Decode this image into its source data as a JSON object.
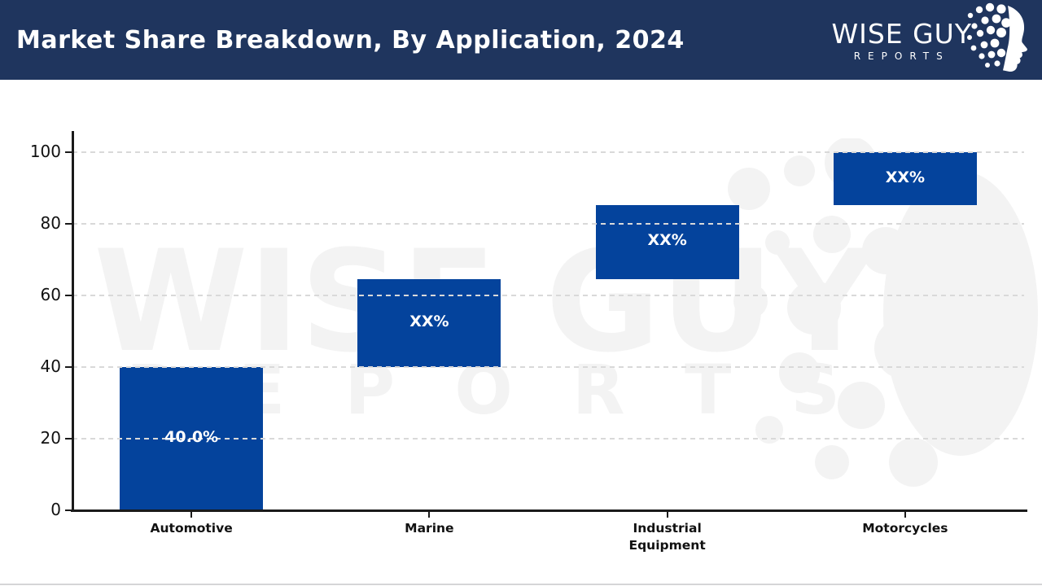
{
  "header": {
    "title": "Market Share Breakdown, By Application, 2024",
    "logo": {
      "primary": "WISE GUY",
      "secondary": "REPORTS"
    }
  },
  "watermark": {
    "primary": "WISE GUY",
    "secondary": "R E P O R T S"
  },
  "colors": {
    "header_bg": "#1f355e",
    "bar": "#04439c",
    "grid": "#d9d9d9",
    "axis": "#1a1a1a",
    "watermark": "#f3f3f3"
  },
  "chart_data": {
    "type": "bar",
    "subtype": "waterfall",
    "title": "Market Share Breakdown, By Application, 2024",
    "categories": [
      "Automotive",
      "Marine",
      "Industrial Equipment",
      "Motorcycles"
    ],
    "category_lines": [
      [
        "Automotive"
      ],
      [
        "Marine"
      ],
      [
        "Industrial",
        "Equipment"
      ],
      [
        "Motorcycles"
      ]
    ],
    "series": [
      {
        "name": "Market share (%)",
        "segments": [
          {
            "category": "Automotive",
            "start": 0,
            "end": 40,
            "label": "40.0%"
          },
          {
            "category": "Marine",
            "start": 40,
            "end": 64.6,
            "label": "XX%"
          },
          {
            "category": "Industrial Equipment",
            "start": 64.6,
            "end": 85.2,
            "label": "XX%"
          },
          {
            "category": "Motorcycles",
            "start": 85.2,
            "end": 100,
            "label": "XX%"
          }
        ]
      }
    ],
    "y_ticks": [
      0,
      20,
      40,
      60,
      80,
      100
    ],
    "ylim": [
      0,
      106
    ],
    "xlabel": "",
    "ylabel": "",
    "grid": "horizontal-dashed",
    "legend": "none",
    "bar_color": "#04439c"
  }
}
